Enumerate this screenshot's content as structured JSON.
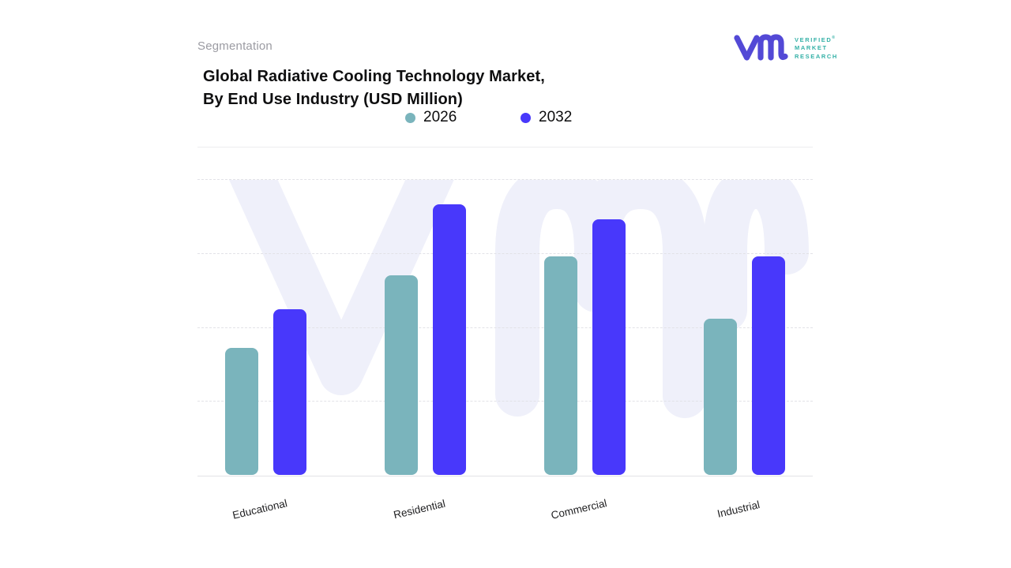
{
  "header": {
    "eyebrow": "Segmentation",
    "title_line1": "Global Radiative Cooling Technology Market,",
    "title_line2": "By End Use Industry (USD Million)"
  },
  "brand": {
    "glyph": "vmr-monogram",
    "glyph_color": "#5349D6",
    "name_line1": "VERIFIED",
    "name_line2": "MARKET",
    "name_line3": "RESEARCH",
    "registered_mark": "®",
    "name_color": "#35B1A7"
  },
  "chart_data": {
    "type": "bar",
    "title": "Global Radiative Cooling Technology Market, By End Use Industry (USD Million)",
    "categories": [
      "Educational",
      "Residential",
      "Commercial",
      "Industrial"
    ],
    "series": [
      {
        "name": "2026",
        "color": "#7AB4BC",
        "values": [
          1.72,
          2.7,
          2.96,
          2.11
        ]
      },
      {
        "name": "2032",
        "color": "#4838FB",
        "values": [
          2.24,
          3.66,
          3.46,
          2.96
        ]
      }
    ],
    "value_axis": {
      "tick_labels_visible": false,
      "units": "relative (1 unit per gridline, axis unlabeled)",
      "gridline_count": 4,
      "grid_style": "dashed",
      "ylim": [
        0,
        4
      ]
    },
    "legend_position": "top-center",
    "legend_labels": [
      "2026",
      "2032"
    ],
    "watermark_text": "vmr",
    "watermark_color": "#EFF0FA",
    "grid_color": "#e2e2e7"
  }
}
